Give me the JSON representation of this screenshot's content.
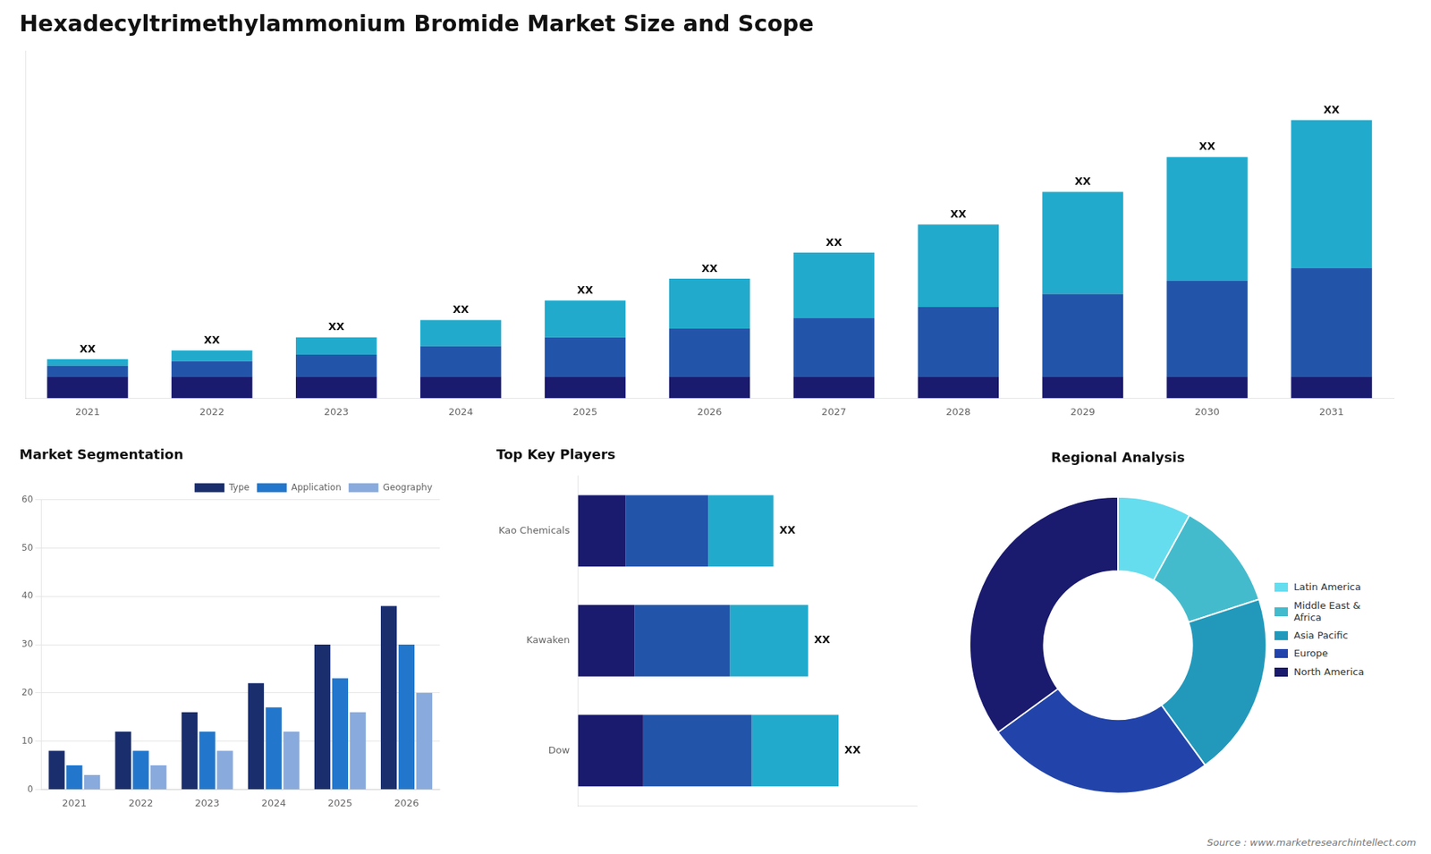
{
  "chart_data": [
    {
      "type": "bar",
      "title": "Hexadecyltrimethylammonium Bromide Market Size and Scope",
      "categories": [
        "2021",
        "2022",
        "2023",
        "2024",
        "2025",
        "2026",
        "2027",
        "2028",
        "2029",
        "2030",
        "2031"
      ],
      "series": [
        {
          "color": "#1a1a6e",
          "values": [
            1,
            1,
            1,
            1,
            1,
            1,
            1,
            1,
            1,
            1,
            1
          ]
        },
        {
          "color": "#2255aa",
          "values": [
            0.5,
            0.7,
            1.0,
            1.4,
            1.8,
            2.2,
            2.7,
            3.2,
            3.8,
            4.4,
            5.0
          ]
        },
        {
          "color": "#22aacc",
          "values": [
            0.3,
            0.5,
            0.8,
            1.2,
            1.7,
            2.3,
            3.0,
            3.8,
            4.7,
            5.7,
            6.8
          ]
        }
      ],
      "stacked": true,
      "ylim": [
        0,
        16
      ],
      "grid": false,
      "tick_labels": "x",
      "annotations": [
        "XX",
        "XX",
        "XX",
        "XX",
        "XX",
        "XX",
        "XX",
        "XX",
        "XX",
        "XX",
        "XX"
      ]
    },
    {
      "type": "bar",
      "title": "Market Segmentation",
      "categories": [
        "2021",
        "2022",
        "2023",
        "2024",
        "2025",
        "2026"
      ],
      "series": [
        {
          "name": "Type",
          "color": "#1a2e6e",
          "values": [
            8,
            12,
            16,
            22,
            30,
            38
          ]
        },
        {
          "name": "Application",
          "color": "#2277cc",
          "values": [
            5,
            8,
            12,
            17,
            23,
            30
          ]
        },
        {
          "name": "Geography",
          "color": "#88aadd",
          "values": [
            3,
            5,
            8,
            12,
            16,
            20
          ]
        }
      ],
      "ylim": [
        0,
        60
      ],
      "yticks": [
        0,
        10,
        20,
        30,
        40,
        50,
        60
      ],
      "grid": true,
      "legend": "upper right"
    },
    {
      "type": "bar",
      "title": "Top Key Players",
      "orientation": "horizontal",
      "stacked": true,
      "categories": [
        "Dow",
        "Kawaken",
        "Kao Chemicals"
      ],
      "series": [
        {
          "color": "#1a1a6e",
          "values": [
            1.5,
            1.3,
            1.1
          ]
        },
        {
          "color": "#2255aa",
          "values": [
            2.5,
            2.2,
            1.9
          ]
        },
        {
          "color": "#22aacc",
          "values": [
            2.0,
            1.8,
            1.5
          ]
        }
      ],
      "xlim": [
        0,
        7.8
      ],
      "grid": false,
      "tick_labels": "y",
      "annotations": [
        "XX",
        "XX",
        "XX"
      ]
    },
    {
      "type": "doughnut",
      "title": "Regional Analysis",
      "categories": [
        "Latin America",
        "Middle East &\nAfrica",
        "Asia Pacific",
        "Europe",
        "North America"
      ],
      "values": [
        8,
        12,
        20,
        25,
        35
      ],
      "colors": [
        "#66ddee",
        "#44bbcc",
        "#2299bb",
        "#2244aa",
        "#1a1a6e"
      ],
      "legend": "right",
      "annotations": [
        "Source : www.marketresearchintellect.com"
      ]
    }
  ]
}
